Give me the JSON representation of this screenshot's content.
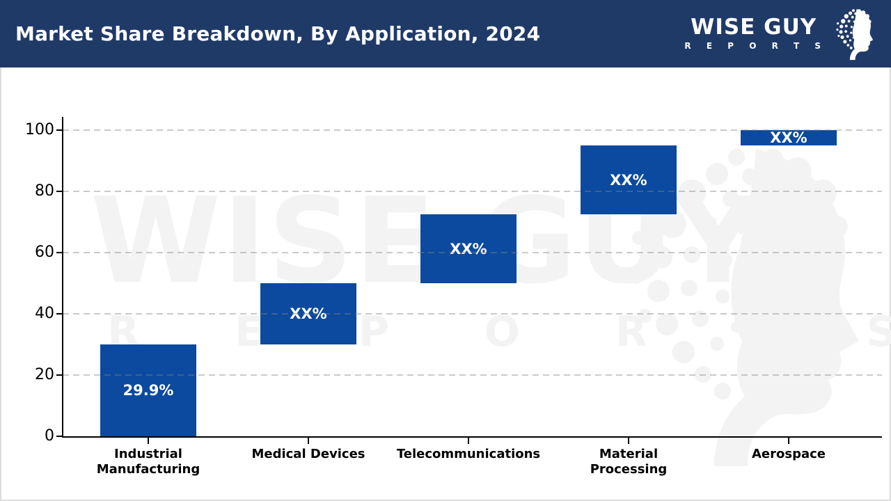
{
  "header": {
    "title": "Market Share Breakdown, By Application, 2024",
    "logo": {
      "wordmark": "WISE GUY",
      "subtext": "R E P O R T S"
    }
  },
  "watermark": {
    "wordmark": "WISE GUY",
    "subtext": "R E P O R T S"
  },
  "chart_data": {
    "type": "bar",
    "subtype": "waterfall",
    "title": "Market Share Breakdown, By Application, 2024",
    "categories": [
      "Industrial Manufacturing",
      "Medical Devices",
      "Telecommunications",
      "Material Processing",
      "Aerospace"
    ],
    "category_label_lines": [
      [
        "Industrial",
        "Manufacturing"
      ],
      [
        "Medical Devices"
      ],
      [
        "Telecommunications"
      ],
      [
        "Material",
        "Processing"
      ],
      [
        "Aerospace"
      ]
    ],
    "segments": [
      {
        "category": "Industrial Manufacturing",
        "start": 0,
        "end": 29.9,
        "label": "29.9%"
      },
      {
        "category": "Medical Devices",
        "start": 29.9,
        "end": 50,
        "label": "XX%"
      },
      {
        "category": "Telecommunications",
        "start": 50,
        "end": 72.5,
        "label": "XX%"
      },
      {
        "category": "Material Processing",
        "start": 72.5,
        "end": 95,
        "label": "XX%"
      },
      {
        "category": "Aerospace",
        "start": 95,
        "end": 100,
        "label": "XX%"
      }
    ],
    "xlabel": "",
    "ylabel": "",
    "ylim": [
      0,
      100
    ],
    "yticks": [
      0,
      20,
      40,
      60,
      80,
      100
    ],
    "grid": {
      "axis": "y",
      "style": "dashed",
      "drawn_over_bars": true
    },
    "legend": null,
    "colors": {
      "bar": "#0b4a9e",
      "bar_label": "#ffffff",
      "axis": "#000000",
      "grid": "#c9c9c9",
      "header_bg": "#203a68",
      "header_text": "#ffffff",
      "watermark": "#f3f3f3",
      "frame_border": "#dcdcdc"
    }
  }
}
